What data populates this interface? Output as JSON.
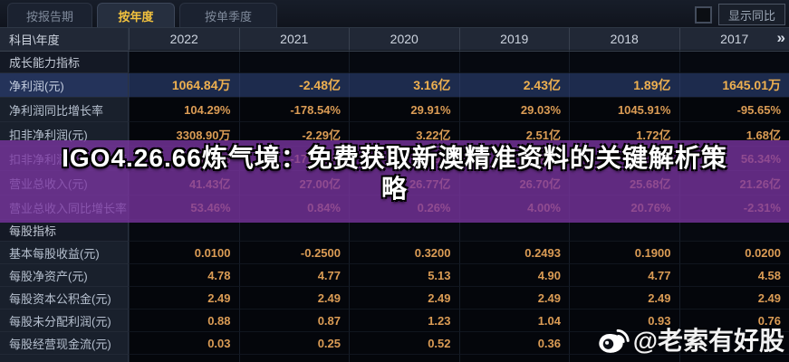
{
  "tabs": [
    {
      "label": "按报告期",
      "active": false
    },
    {
      "label": "按年度",
      "active": true
    },
    {
      "label": "按单季度",
      "active": false
    }
  ],
  "toolbar": {
    "show_yoy_label": "显示同比",
    "checkbox_checked": false
  },
  "table": {
    "corner_label": "科目\\年度",
    "years": [
      "2022",
      "2021",
      "2020",
      "2019",
      "2018",
      "2017"
    ],
    "more_years_symbol": "»",
    "rows": [
      {
        "type": "section",
        "label": "成长能力指标",
        "values": [
          "",
          "",
          "",
          "",
          "",
          ""
        ]
      },
      {
        "type": "data",
        "label": "净利润(元)",
        "highlight": true,
        "values": [
          "1064.84万",
          "-2.48亿",
          "3.16亿",
          "2.43亿",
          "1.89亿",
          "1645.01万"
        ]
      },
      {
        "type": "data",
        "label": "净利润同比增长率",
        "values": [
          "104.29%",
          "-178.54%",
          "29.91%",
          "29.03%",
          "1045.91%",
          "-95.65%"
        ]
      },
      {
        "type": "data",
        "label": "扣非净利润(元)",
        "values": [
          "3308.90万",
          "-2.29亿",
          "3.22亿",
          "2.51亿",
          "1.72亿",
          "1.68亿"
        ]
      },
      {
        "type": "data",
        "label": "扣非净利润同比增长率",
        "values": [
          "114.45%",
          "-171.12%",
          "28.29%",
          "45.93%",
          "2.38%",
          "56.34%"
        ]
      },
      {
        "type": "data",
        "label": "营业总收入(元)",
        "values": [
          "41.43亿",
          "27.00亿",
          "26.77亿",
          "26.70亿",
          "25.68亿",
          "21.26亿"
        ]
      },
      {
        "type": "data",
        "label": "营业总收入同比增长率",
        "values": [
          "53.46%",
          "0.84%",
          "0.26%",
          "4.00%",
          "20.76%",
          "-2.31%"
        ]
      },
      {
        "type": "section",
        "label": "每股指标",
        "values": [
          "",
          "",
          "",
          "",
          "",
          ""
        ]
      },
      {
        "type": "data",
        "label": "基本每股收益(元)",
        "values": [
          "0.0100",
          "-0.2500",
          "0.3200",
          "0.2493",
          "0.1900",
          "0.0200"
        ]
      },
      {
        "type": "data",
        "label": "每股净资产(元)",
        "values": [
          "4.78",
          "4.77",
          "5.13",
          "4.90",
          "4.77",
          "4.58"
        ]
      },
      {
        "type": "data",
        "label": "每股资本公积金(元)",
        "values": [
          "2.49",
          "2.49",
          "2.49",
          "2.49",
          "2.49",
          "2.49"
        ]
      },
      {
        "type": "data",
        "label": "每股未分配利润(元)",
        "values": [
          "0.88",
          "0.87",
          "1.23",
          "1.04",
          "0.93",
          "0.76"
        ]
      },
      {
        "type": "data",
        "label": "每股经营现金流(元)",
        "values": [
          "0.03",
          "0.25",
          "0.52",
          "0.36",
          "",
          ""
        ]
      },
      {
        "type": "data",
        "label": "",
        "values": [
          "",
          "",
          "",
          "",
          "",
          ""
        ]
      }
    ]
  },
  "overlay": {
    "headline_lines": [
      "IGO4.26.66炼气境：免费获取新澳精准资料的关键解析策",
      "略"
    ],
    "purple": "#7b34a2"
  },
  "watermark": {
    "handle": "@老索有好股",
    "icon": "weibo-icon"
  },
  "colors": {
    "accent_gold": "#f2c23e",
    "value_orange": "#db9c55",
    "highlight_row_blue": "#1d2b4d",
    "overlay_purple": "#7b34a2"
  }
}
